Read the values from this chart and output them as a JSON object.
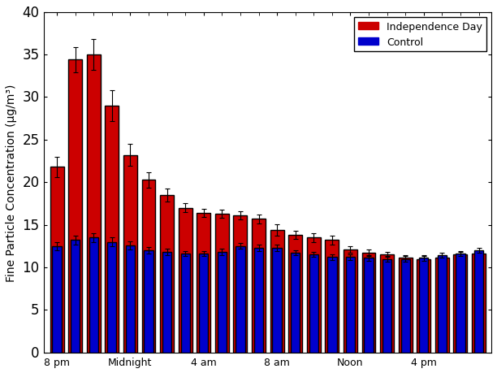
{
  "independence_day_values": [
    21.8,
    34.4,
    35.0,
    29.0,
    23.2,
    20.3,
    18.5,
    17.0,
    16.4,
    16.3,
    16.1,
    15.7,
    14.4,
    13.8,
    13.5,
    13.2,
    12.1,
    11.7,
    11.5,
    11.1,
    11.0,
    11.1,
    11.5,
    11.6
  ],
  "control_values": [
    12.5,
    13.2,
    13.5,
    13.0,
    12.6,
    12.0,
    11.8,
    11.6,
    11.6,
    11.8,
    12.5,
    12.3,
    12.3,
    11.7,
    11.5,
    11.2,
    11.2,
    11.1,
    11.0,
    11.0,
    11.1,
    11.4,
    11.6,
    12.0
  ],
  "independence_day_errors": [
    1.2,
    1.5,
    1.8,
    1.8,
    1.3,
    0.9,
    0.8,
    0.55,
    0.5,
    0.5,
    0.5,
    0.5,
    0.7,
    0.5,
    0.5,
    0.5,
    0.4,
    0.4,
    0.3,
    0.3,
    0.3,
    0.3,
    0.3,
    0.3
  ],
  "control_errors": [
    0.5,
    0.5,
    0.5,
    0.5,
    0.5,
    0.4,
    0.4,
    0.3,
    0.3,
    0.35,
    0.35,
    0.35,
    0.35,
    0.3,
    0.3,
    0.3,
    0.3,
    0.3,
    0.3,
    0.3,
    0.3,
    0.3,
    0.3,
    0.3
  ],
  "independence_day_color": "#CC0000",
  "control_color": "#0000CC",
  "ylabel": "Fine Particle Concentration (μg/m³)",
  "ylim": [
    0,
    40
  ],
  "yticks": [
    0,
    5,
    10,
    15,
    20,
    25,
    30,
    35,
    40
  ],
  "xtick_label_names": [
    "8 pm",
    "Midnight",
    "4 am",
    "8 am",
    "Noon",
    "4 pm"
  ],
  "xtick_positions": [
    0,
    4,
    8,
    12,
    16,
    20
  ],
  "legend_labels": [
    "Independence Day",
    "Control"
  ],
  "n_bars": 24,
  "background_color": "#ffffff",
  "figsize": [
    6.12,
    4.6
  ],
  "dpi": 100
}
